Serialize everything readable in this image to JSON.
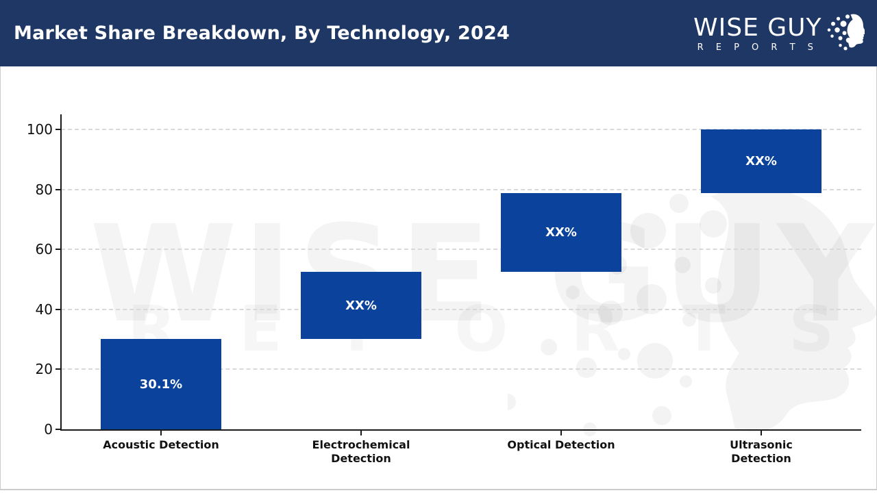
{
  "header": {
    "title": "Market Share Breakdown, By Technology, 2024",
    "logo_line1": "WISE GUY",
    "logo_line2": "R E P O R T S"
  },
  "watermark": {
    "big_text": "WISE GUY",
    "small_text": "R E P O R T S"
  },
  "chart_data": {
    "type": "bar",
    "subtype": "waterfall",
    "title": "Market Share Breakdown, By Technology, 2024",
    "categories": [
      "Acoustic Detection",
      "Electrochemical Detection",
      "Optical Detection",
      "Ultrasonic Detection"
    ],
    "display_categories": [
      "Acoustic Detection",
      "Electrochemical\nDetection",
      "Optical Detection",
      "Ultrasonic\nDetection"
    ],
    "segments": [
      {
        "category": "Acoustic Detection",
        "start": 0,
        "end": 30.1,
        "label": "30.1%"
      },
      {
        "category": "Electrochemical Detection",
        "start": 30.1,
        "end": 52.5,
        "label": "XX%"
      },
      {
        "category": "Optical Detection",
        "start": 52.5,
        "end": 78.8,
        "label": "XX%"
      },
      {
        "category": "Ultrasonic Detection",
        "start": 78.8,
        "end": 100,
        "label": "XX%"
      }
    ],
    "ylim": [
      0,
      100
    ],
    "yticks": [
      0,
      20,
      40,
      60,
      80,
      100
    ],
    "xlabel": "",
    "ylabel": "",
    "grid": "horizontal-dashed",
    "legend": "none",
    "bar_color": "#0a429c"
  },
  "colors": {
    "header_bg": "#1f3765",
    "bar": "#0a429c",
    "axis": "#1a1a1a",
    "grid": "#d9d9d9",
    "panel_border": "#cccccc",
    "watermark": "#f0f0f0",
    "bar_label_text": "#ffffff",
    "title_text": "#ffffff"
  }
}
